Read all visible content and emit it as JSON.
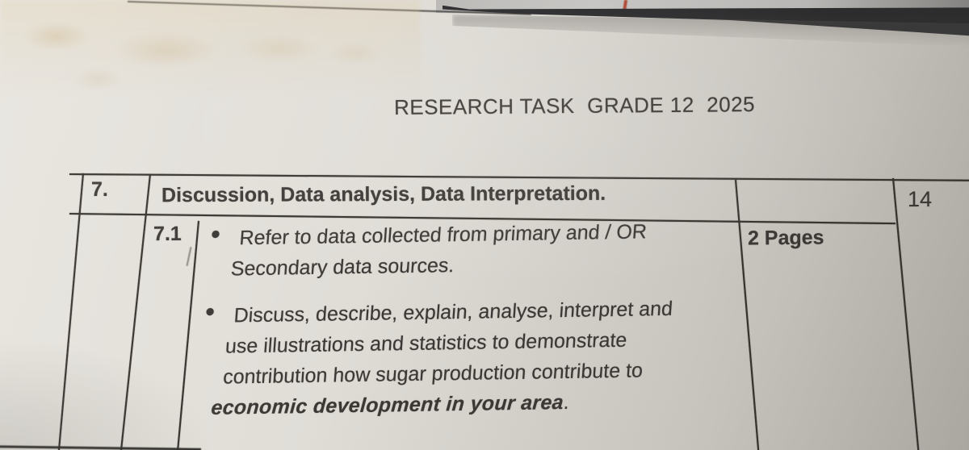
{
  "document": {
    "title": "RESEARCH TASK  GRADE 12  2025"
  },
  "table": {
    "bullet_glyph": "•",
    "section": {
      "number": "7.",
      "heading": "Discussion, Data analysis, Data Interpretation.",
      "marks": "14"
    },
    "item": {
      "number": "7.1",
      "pages": "2 Pages",
      "bullet1": {
        "line1": "Refer to data collected from primary and / OR",
        "line2": "Secondary data sources."
      },
      "bullet2": {
        "line1": "Discuss, describe, explain, analyse, interpret and",
        "line2": "use illustrations and statistics to demonstrate",
        "line3": "contribution how sugar production contribute to",
        "emphasis": "economic development in your area",
        "suffix": "."
      }
    }
  },
  "colors": {
    "paper": "#dcd9d3",
    "ink": "#3a3734",
    "table_line": "#34312d",
    "shadow_band": "#29292b",
    "red_pen_line": "#b24a36",
    "teal_pen_line": "#5f98ab",
    "stain": "#ba985f"
  }
}
